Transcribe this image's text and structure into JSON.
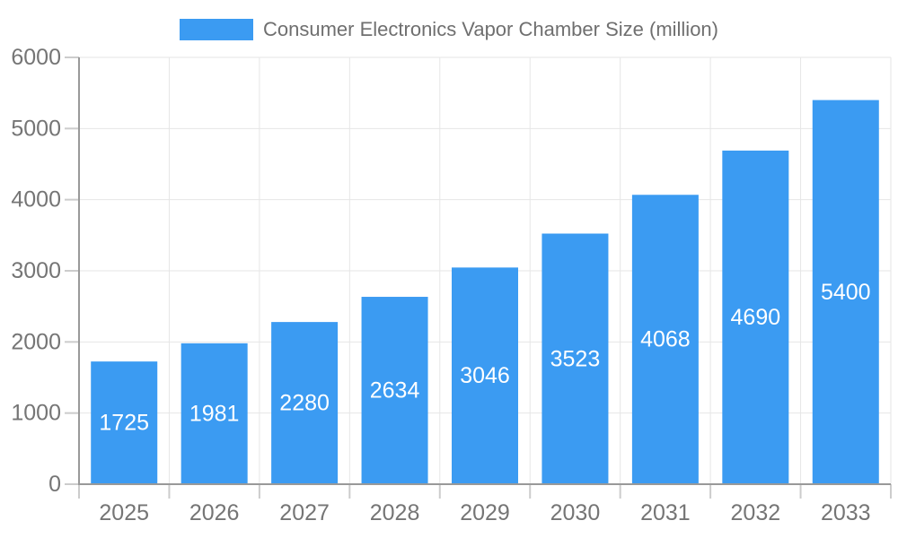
{
  "chart_data": {
    "type": "bar",
    "title": "Consumer Electronics Vapor Chamber Size (million)",
    "categories": [
      "2025",
      "2026",
      "2027",
      "2028",
      "2029",
      "2030",
      "2031",
      "2032",
      "2033"
    ],
    "values": [
      1725,
      1981,
      2280,
      2634,
      3046,
      3523,
      4068,
      4690,
      5400
    ],
    "xlabel": "",
    "ylabel": "",
    "ylim": [
      0,
      6000
    ],
    "yticks": [
      0,
      1000,
      2000,
      3000,
      4000,
      5000,
      6000
    ],
    "grid": true,
    "legend_position": "top",
    "bar_value_labels": "inside-center"
  },
  "colors": {
    "bar": "#3b9bf2",
    "axis_line": "#999999",
    "tick": "#cccccc",
    "gridline": "#e6e6e6",
    "axis_text": "#757575",
    "bar_label_text": "#ffffff",
    "legend_text": "#6f6f6f",
    "background": "#ffffff"
  }
}
